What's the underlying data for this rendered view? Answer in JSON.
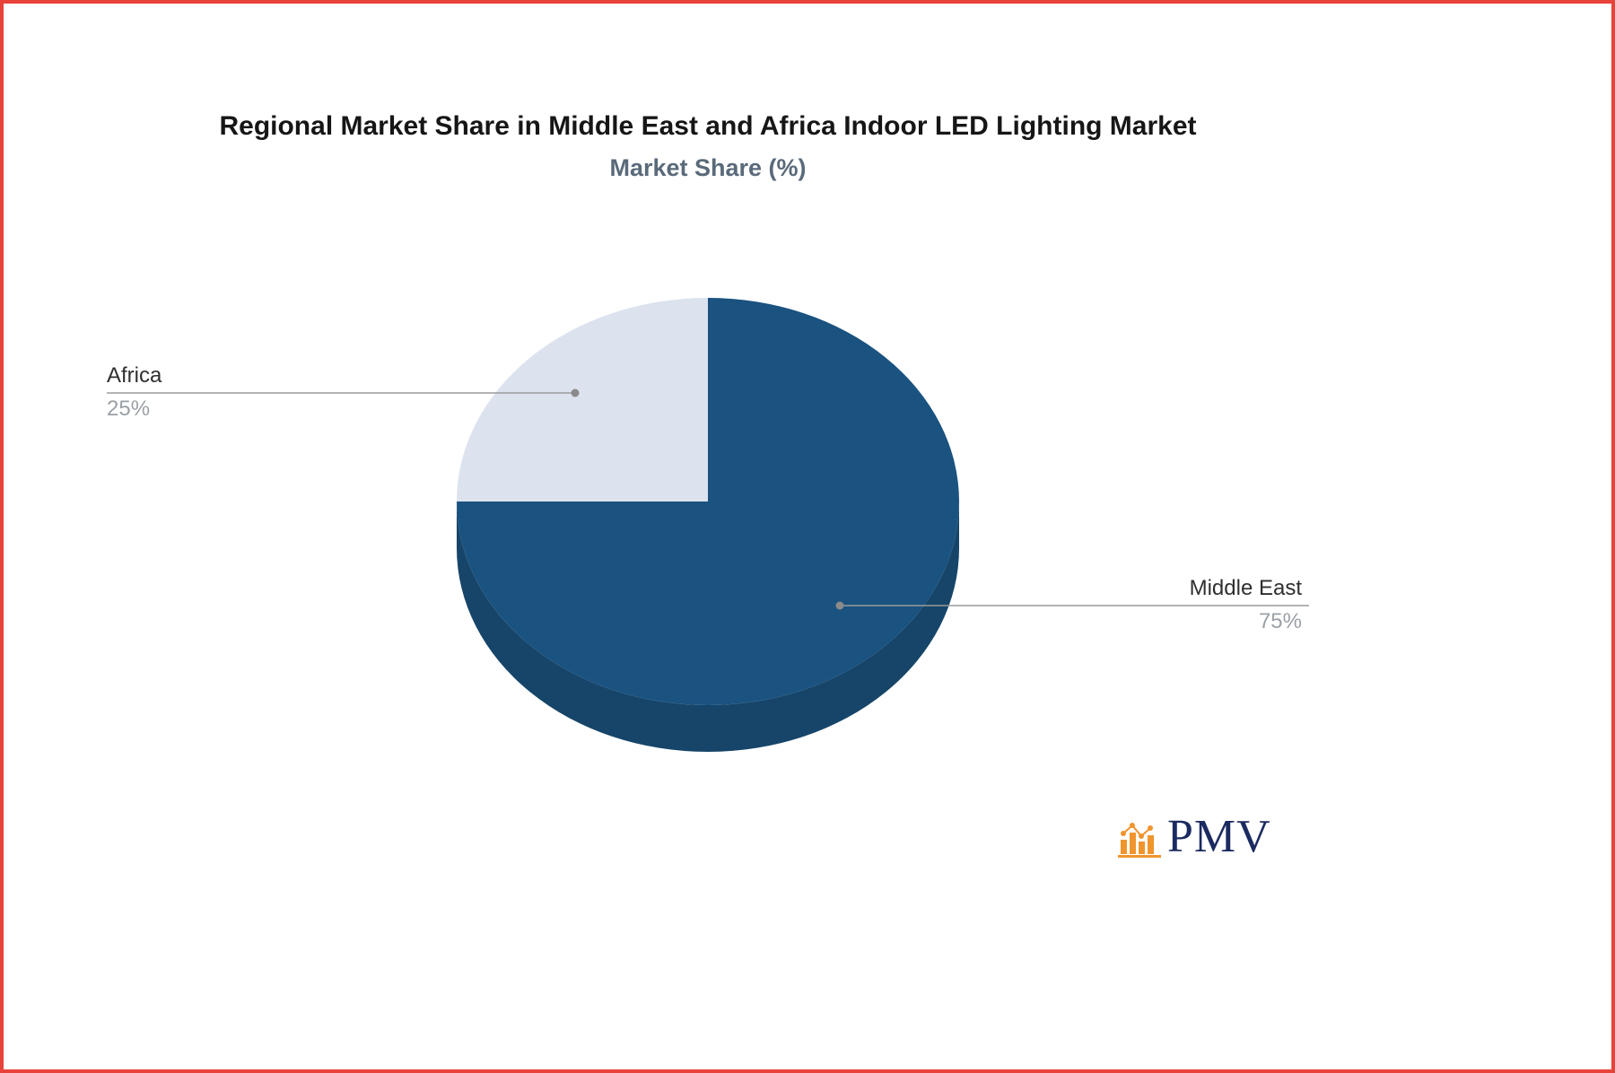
{
  "page": {
    "border_color": "#e8433a",
    "background": "#ffffff"
  },
  "header": {
    "title": "Regional Market Share in Middle East and Africa Indoor LED Lighting Market",
    "subtitle": "Market Share (%)"
  },
  "chart_data": {
    "type": "pie",
    "title": "Regional Market Share in Middle East and Africa Indoor LED Lighting Market",
    "subtitle": "Market Share (%)",
    "unit": "%",
    "effect": "3d",
    "start_angle_deg": -90,
    "direction": "clockwise",
    "legend": "none",
    "labels": "leader-lines",
    "slices": [
      {
        "label": "Middle East",
        "value": 75,
        "display": "75%",
        "color": "#1a5280",
        "side_color": "#164569"
      },
      {
        "label": "Africa",
        "value": 25,
        "display": "25%",
        "color": "#dce3ee",
        "side_color": "#b9c4d6"
      }
    ]
  },
  "logo": {
    "text": "PMV",
    "color": "#1b2a60",
    "icon_color": "#f0952e"
  }
}
